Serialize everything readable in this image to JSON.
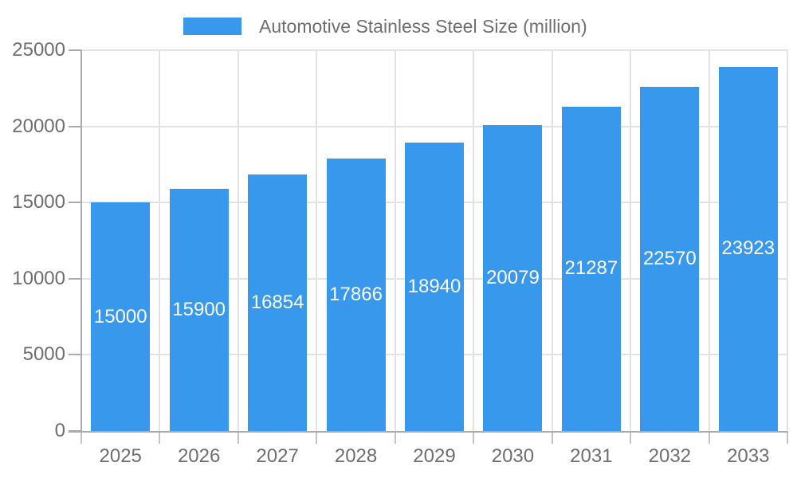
{
  "chart_data": {
    "type": "bar",
    "series_name": "Automotive Stainless Steel Size (million)",
    "categories": [
      "2025",
      "2026",
      "2027",
      "2028",
      "2029",
      "2030",
      "2031",
      "2032",
      "2033"
    ],
    "values": [
      15000,
      15900,
      16854,
      17866,
      18940,
      20079,
      21287,
      22570,
      23923
    ],
    "ylim": [
      0,
      25000
    ],
    "yticks": [
      0,
      5000,
      10000,
      15000,
      20000,
      25000
    ],
    "grid": true,
    "legend_position": "top",
    "value_label_position": "inside-center",
    "colors": {
      "bar": "#3898EC",
      "grid": "#E2E2E2",
      "axis": "#ABABAB",
      "text": "#6E6E6E",
      "value_label": "#FFFFFF",
      "background": "#FFFFFF"
    }
  }
}
